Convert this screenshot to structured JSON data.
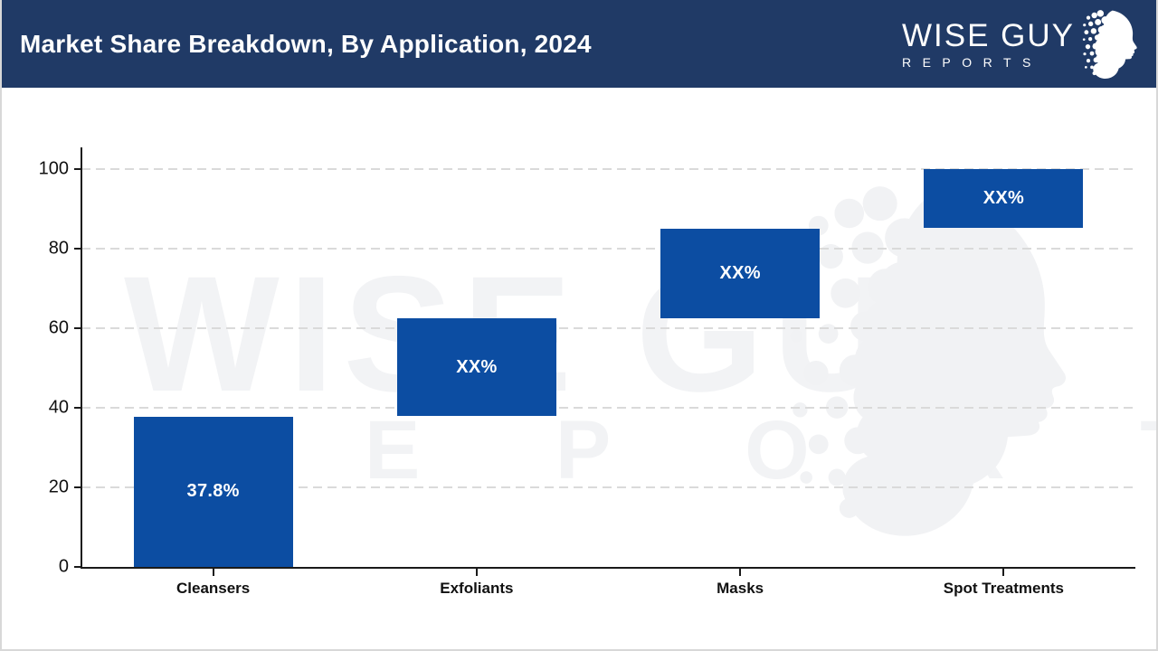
{
  "header": {
    "title": "Market Share Breakdown, By Application, 2024",
    "bg_color": "#203a66",
    "logo": {
      "line1": "WISE GUY",
      "line2": "REPORTS"
    }
  },
  "watermark": {
    "line1": "WISE GUY",
    "line2": "R E P O R T S"
  },
  "chart_data": {
    "type": "bar",
    "subtype": "waterfall",
    "title": "Market Share Breakdown, By Application, 2024",
    "categories": [
      "Cleansers",
      "Exfoliants",
      "Masks",
      "Spot Treatments"
    ],
    "segments": [
      {
        "category": "Cleansers",
        "start": 0,
        "end": 37.8,
        "label": "37.8%"
      },
      {
        "category": "Exfoliants",
        "start": 37.9,
        "end": 62.4,
        "label": "XX%"
      },
      {
        "category": "Masks",
        "start": 62.6,
        "end": 84.9,
        "label": "XX%"
      },
      {
        "category": "Spot Treatments",
        "start": 85.3,
        "end": 100,
        "label": "XX%"
      }
    ],
    "xlabel": "",
    "ylabel": "",
    "ylim": [
      0,
      100
    ],
    "yticks": [
      0,
      20,
      40,
      60,
      80,
      100
    ],
    "grid": "horizontal-dashed",
    "legend": "none",
    "bar_color": "#0c4da2",
    "bar_label_color": "#ffffff",
    "grid_color": "#dadada",
    "axis_color": "#1a1a1a"
  }
}
